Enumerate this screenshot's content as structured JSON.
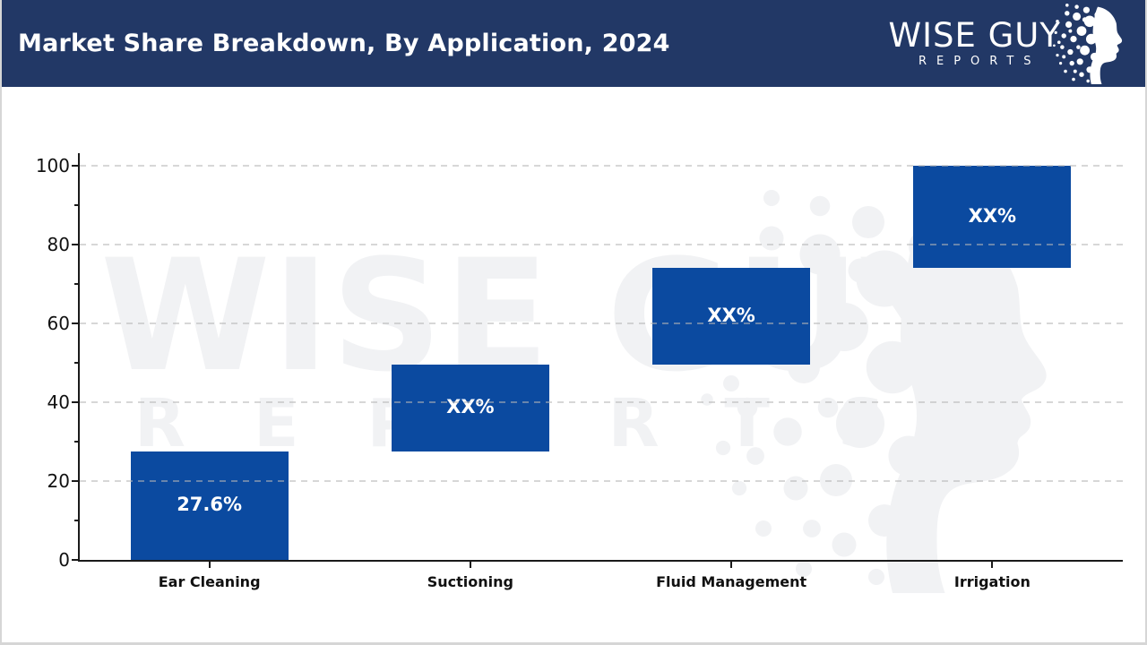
{
  "header": {
    "title": "Market Share Breakdown, By Application, 2024",
    "logo": {
      "line1": "WISE GUY",
      "line2": "REPORTS"
    }
  },
  "watermark": {
    "line1": "WISE GUY",
    "line2": "REPORTS"
  },
  "chart_data": {
    "type": "bar",
    "subtype": "waterfall",
    "title": "Market Share Breakdown, By Application, 2024",
    "categories": [
      "Ear Cleaning",
      "Suctioning",
      "Fluid Management",
      "Irrigation"
    ],
    "bars": [
      {
        "category": "Ear Cleaning",
        "start": 0,
        "end": 27.6,
        "label": "27.6%"
      },
      {
        "category": "Suctioning",
        "start": 27.6,
        "end": 49.5,
        "label": "XX%"
      },
      {
        "category": "Fluid Management",
        "start": 49.5,
        "end": 74,
        "label": "XX%"
      },
      {
        "category": "Irrigation",
        "start": 74,
        "end": 100,
        "label": "XX%"
      }
    ],
    "xlabel": "",
    "ylabel": "",
    "ylim": [
      0,
      105
    ],
    "yaxis_ticks": [
      0,
      20,
      40,
      60,
      80,
      100
    ],
    "grid": "dashed-horizontal",
    "legend": "none",
    "bar_color": "#0b4aa0",
    "bar_label_color": "#ffffff",
    "axis_color": "#1a1a1a",
    "header_color": "#223866",
    "watermark_color": "#f1f2f4"
  }
}
